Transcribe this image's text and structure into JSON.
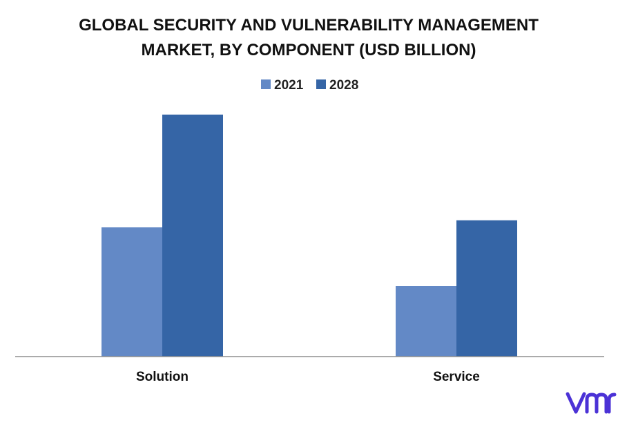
{
  "chart_data": {
    "type": "bar",
    "title_lines": [
      "GLOBAL SECURITY AND VULNERABILITY MANAGEMENT",
      "MARKET, BY COMPONENT (USD BILLION)"
    ],
    "categories": [
      "Solution",
      "Service"
    ],
    "series": [
      {
        "name": "2021",
        "values": [
          5.5,
          3.0
        ],
        "color": "#6389c6"
      },
      {
        "name": "2028",
        "values": [
          10.3,
          5.8
        ],
        "color": "#3565a6"
      }
    ],
    "ylim": [
      0,
      11
    ],
    "grid": false,
    "legend_position": "top-center",
    "axis_color": "#8f8f8f"
  }
}
